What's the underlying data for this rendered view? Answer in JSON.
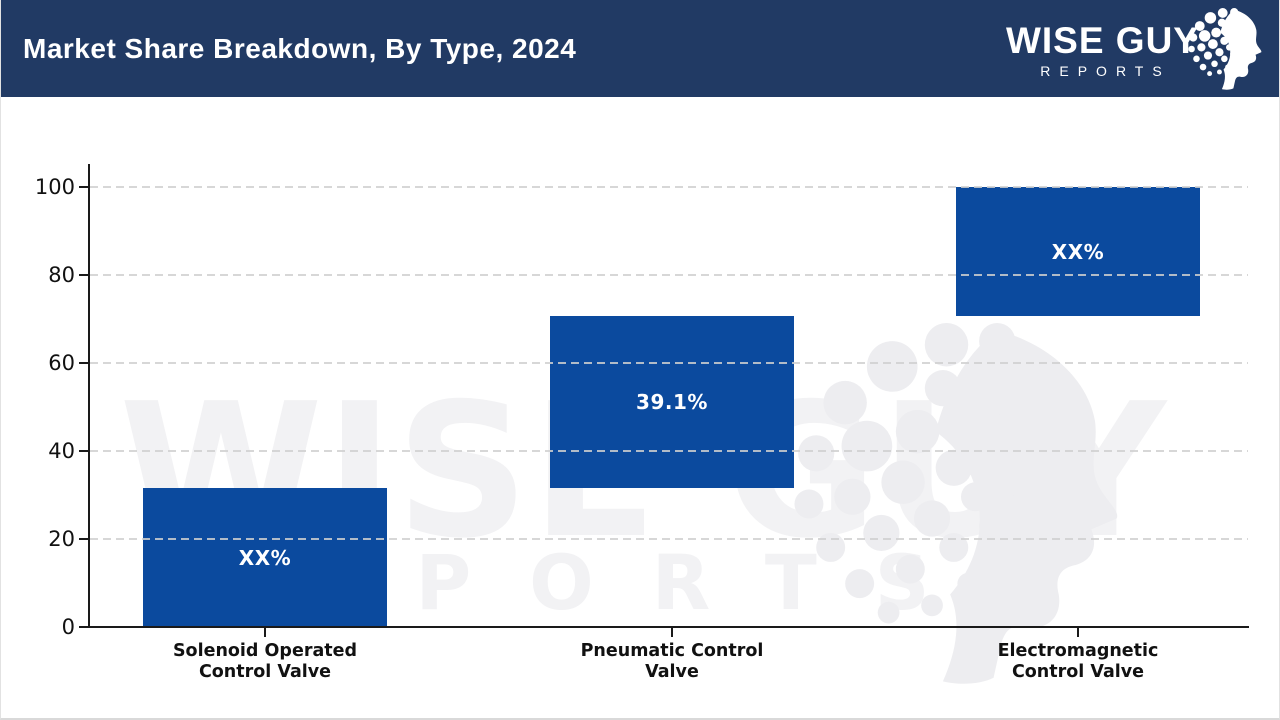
{
  "header": {
    "title": "Market Share Breakdown, By Type, 2024",
    "logo": {
      "name": "Wise Guy Reports",
      "line1": "WISE GUY",
      "line2": "REPORTS"
    }
  },
  "watermark": {
    "line1": "WISE GUY",
    "line2": "REPORTS"
  },
  "colors": {
    "header_bg": "#213a64",
    "bar": "#0b4a9e",
    "bar_label": "#ffffff",
    "axis": "#1a1a1a",
    "grid": "#d0d0d0",
    "watermark_text": "#f2f2f4"
  },
  "chart_data": {
    "type": "bar",
    "subtype": "waterfall",
    "title": "Market Share Breakdown, By Type, 2024",
    "categories": [
      "Solenoid Operated\nControl Valve",
      "Pneumatic Control\nValve",
      "Electromagnetic\nControl Valve"
    ],
    "segments": [
      {
        "category": "Solenoid Operated Control Valve",
        "start": 0,
        "end": 31.5,
        "label": "XX%"
      },
      {
        "category": "Pneumatic Control Valve",
        "start": 31.5,
        "end": 70.6,
        "label": "39.1%"
      },
      {
        "category": "Electromagnetic Control Valve",
        "start": 70.6,
        "end": 100,
        "label": "XX%"
      }
    ],
    "xlabel": "",
    "ylabel": "",
    "yticks": [
      0,
      20,
      40,
      60,
      80,
      100
    ],
    "ylim": [
      0,
      105
    ],
    "grid": "horizontal-dashed",
    "legend": "none"
  }
}
